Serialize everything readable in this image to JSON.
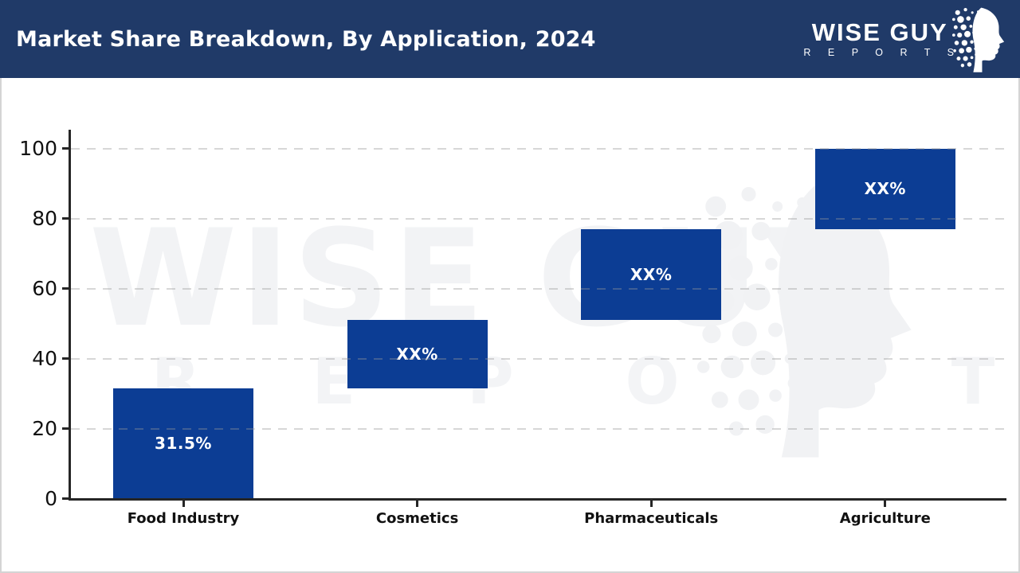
{
  "header": {
    "title": "Market Share Breakdown, By Application, 2024",
    "logo": {
      "line1": "WISE GUY",
      "line2": "R E P O R T S"
    }
  },
  "watermark": {
    "line1": "WISE GUY",
    "line2": "R E P O R T S"
  },
  "colors": {
    "header_bg": "#203A68",
    "bar": "#0C3D94",
    "bar_label": "#FFFFFF",
    "axis": "#262626",
    "gridline": "#D9D9D9",
    "watermark": "#F1F2F4"
  },
  "chart_data": {
    "type": "bar",
    "subtype": "waterfall",
    "title": "Market Share Breakdown, By Application, 2024",
    "categories": [
      "Food Industry",
      "Cosmetics",
      "Pharmaceuticals",
      "Agriculture"
    ],
    "segments": [
      {
        "category": "Food Industry",
        "start": 0,
        "end": 31.5,
        "label": "31.5%"
      },
      {
        "category": "Cosmetics",
        "start": 31.5,
        "end": 51,
        "label": "XX%"
      },
      {
        "category": "Pharmaceuticals",
        "start": 51,
        "end": 77,
        "label": "XX%"
      },
      {
        "category": "Agriculture",
        "start": 77,
        "end": 100,
        "label": "XX%"
      }
    ],
    "ylim": [
      0,
      100
    ],
    "yticks": [
      0,
      20,
      40,
      60,
      80,
      100
    ],
    "xlabel": "",
    "ylabel": "",
    "grid": "horizontal-dashed",
    "legend": "none"
  }
}
